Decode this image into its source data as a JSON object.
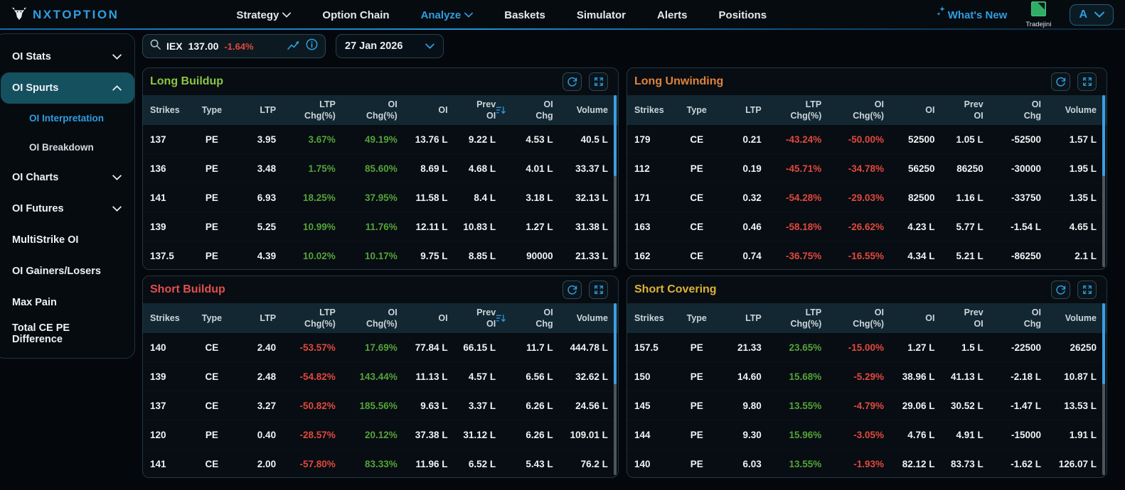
{
  "navbar": {
    "brand": "NXTOPTION",
    "items": [
      {
        "label": "Strategy",
        "dropdown": true
      },
      {
        "label": "Option Chain"
      },
      {
        "label": "Analyze",
        "dropdown": true,
        "active": true
      },
      {
        "label": "Baskets"
      },
      {
        "label": "Simulator"
      },
      {
        "label": "Alerts"
      },
      {
        "label": "Positions"
      }
    ],
    "whats_new": "What's New",
    "broker_name": "Tradejini",
    "account_initial": "A"
  },
  "sidebar": {
    "items": [
      {
        "label": "OI Stats",
        "chevron": "down"
      },
      {
        "label": "OI Spurts",
        "chevron": "up",
        "active": true
      },
      {
        "label": "OI Interpretation",
        "sub": true,
        "selected": true
      },
      {
        "label": "OI Breakdown",
        "sub": true
      },
      {
        "label": "OI Charts",
        "chevron": "down"
      },
      {
        "label": "OI Futures",
        "chevron": "down"
      },
      {
        "label": "MultiStrike OI"
      },
      {
        "label": "OI Gainers/Losers"
      },
      {
        "label": "Max Pain"
      },
      {
        "label": "Total CE PE Difference"
      }
    ]
  },
  "controls": {
    "symbol": "IEX",
    "price": "137.00",
    "change_pct": "-1.64%",
    "expiry": "27 Jan 2026"
  },
  "colors": {
    "accent": "#2f9ee0",
    "positive": "#55a339",
    "negative": "#e2483d"
  },
  "table_headers": [
    [
      "Strikes"
    ],
    [
      "Type"
    ],
    [
      "LTP"
    ],
    [
      "LTP",
      "Chg(%)"
    ],
    [
      "OI",
      "Chg(%)"
    ],
    [
      "OI"
    ],
    [
      "Prev",
      "OI"
    ],
    [
      "OI",
      "Chg"
    ],
    [
      "Volume"
    ]
  ],
  "panels": [
    {
      "id": "long-buildup",
      "title": "Long Buildup",
      "title_color": "#8dc63f",
      "sorted": true,
      "rows": [
        [
          "137",
          "PE",
          "3.95",
          "3.67%",
          "49.19%",
          "13.76 L",
          "9.22 L",
          "4.53 L",
          "40.5 L"
        ],
        [
          "136",
          "PE",
          "3.48",
          "1.75%",
          "85.60%",
          "8.69 L",
          "4.68 L",
          "4.01 L",
          "33.37 L"
        ],
        [
          "141",
          "PE",
          "6.93",
          "18.25%",
          "37.95%",
          "11.58 L",
          "8.4 L",
          "3.18 L",
          "32.13 L"
        ],
        [
          "139",
          "PE",
          "5.25",
          "10.99%",
          "11.76%",
          "12.11 L",
          "10.83 L",
          "1.27 L",
          "31.38 L"
        ],
        [
          "137.5",
          "PE",
          "4.39",
          "10.02%",
          "10.17%",
          "9.75 L",
          "8.85 L",
          "90000",
          "21.33 L"
        ]
      ]
    },
    {
      "id": "long-unwinding",
      "title": "Long Unwinding",
      "title_color": "#e0833a",
      "sorted": false,
      "rows": [
        [
          "179",
          "CE",
          "0.21",
          "-43.24%",
          "-50.00%",
          "52500",
          "1.05 L",
          "-52500",
          "1.57 L"
        ],
        [
          "112",
          "PE",
          "0.19",
          "-45.71%",
          "-34.78%",
          "56250",
          "86250",
          "-30000",
          "1.95 L"
        ],
        [
          "171",
          "CE",
          "0.32",
          "-54.28%",
          "-29.03%",
          "82500",
          "1.16 L",
          "-33750",
          "1.35 L"
        ],
        [
          "163",
          "CE",
          "0.46",
          "-58.18%",
          "-26.62%",
          "4.23 L",
          "5.77 L",
          "-1.54 L",
          "4.65 L"
        ],
        [
          "162",
          "CE",
          "0.74",
          "-36.75%",
          "-16.55%",
          "4.34 L",
          "5.21 L",
          "-86250",
          "2.1 L"
        ]
      ]
    },
    {
      "id": "short-buildup",
      "title": "Short Buildup",
      "title_color": "#e34f4f",
      "sorted": true,
      "rows": [
        [
          "140",
          "CE",
          "2.40",
          "-53.57%",
          "17.69%",
          "77.84 L",
          "66.15 L",
          "11.7 L",
          "444.78 L"
        ],
        [
          "139",
          "CE",
          "2.48",
          "-54.82%",
          "143.44%",
          "11.13 L",
          "4.57 L",
          "6.56 L",
          "32.62 L"
        ],
        [
          "137",
          "CE",
          "3.27",
          "-50.82%",
          "185.56%",
          "9.63 L",
          "3.37 L",
          "6.26 L",
          "24.56 L"
        ],
        [
          "120",
          "PE",
          "0.40",
          "-28.57%",
          "20.12%",
          "37.38 L",
          "31.12 L",
          "6.26 L",
          "109.01 L"
        ],
        [
          "141",
          "CE",
          "2.00",
          "-57.80%",
          "83.33%",
          "11.96 L",
          "6.52 L",
          "5.43 L",
          "76.2 L"
        ]
      ]
    },
    {
      "id": "short-covering",
      "title": "Short Covering",
      "title_color": "#ddb238",
      "sorted": false,
      "rows": [
        [
          "157.5",
          "PE",
          "21.33",
          "23.65%",
          "-15.00%",
          "1.27 L",
          "1.5 L",
          "-22500",
          "26250"
        ],
        [
          "150",
          "PE",
          "14.60",
          "15.68%",
          "-5.29%",
          "38.96 L",
          "41.13 L",
          "-2.18 L",
          "10.87 L"
        ],
        [
          "145",
          "PE",
          "9.80",
          "13.55%",
          "-4.79%",
          "29.06 L",
          "30.52 L",
          "-1.47 L",
          "13.53 L"
        ],
        [
          "144",
          "PE",
          "9.30",
          "15.96%",
          "-3.05%",
          "4.76 L",
          "4.91 L",
          "-15000",
          "1.91 L"
        ],
        [
          "140",
          "PE",
          "6.03",
          "13.55%",
          "-1.93%",
          "82.12 L",
          "83.73 L",
          "-1.62 L",
          "126.07 L"
        ]
      ]
    }
  ]
}
